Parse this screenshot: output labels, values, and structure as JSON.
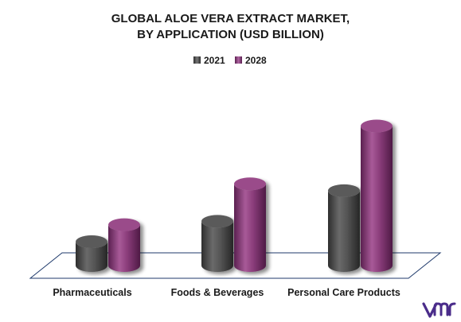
{
  "chart_data": {
    "type": "bar",
    "title_lines": [
      "GLOBAL ALOE VERA EXTRACT MARKET,",
      "BY APPLICATION (USD BILLION)"
    ],
    "categories": [
      "Pharmaceuticals",
      "Foods & Beverages",
      "Personal Care Products"
    ],
    "series": [
      {
        "name": "2021",
        "values": [
          0.35,
          0.65,
          1.1
        ],
        "color": "#4a4a4a"
      },
      {
        "name": "2028",
        "values": [
          0.6,
          1.2,
          2.05
        ],
        "color": "#8a3c7a"
      }
    ],
    "ylim": [
      0,
      2.5
    ],
    "grid": false,
    "legend_position": "top-center",
    "style": "3d-cylinder"
  },
  "logo": {
    "text": "VMR",
    "color": "#4a2c8a"
  }
}
